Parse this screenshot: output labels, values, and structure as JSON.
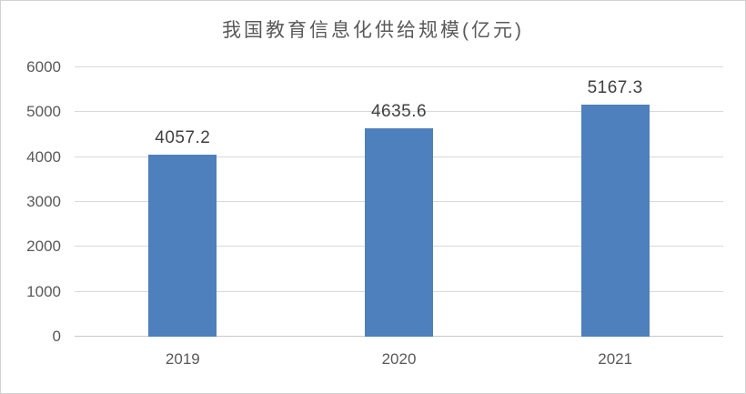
{
  "chart_data": {
    "type": "bar",
    "title": "我国教育信息化供给规模(亿元)",
    "categories": [
      "2019",
      "2020",
      "2021"
    ],
    "values": [
      4057.2,
      4635.6,
      5167.3
    ],
    "data_labels": [
      "4057.2",
      "4635.6",
      "5167.3"
    ],
    "ytick_labels": [
      "0",
      "1000",
      "2000",
      "3000",
      "4000",
      "5000",
      "6000"
    ],
    "yticks": [
      0,
      1000,
      2000,
      3000,
      4000,
      5000,
      6000
    ],
    "ylim": [
      0,
      6000
    ],
    "xlabel": "",
    "ylabel": "",
    "grid": "horizontal",
    "legend": "none",
    "bar_color": "#4d80bc",
    "gridline_color": "#d9d9d9",
    "axis_label_color": "#595959",
    "data_label_color": "#404040",
    "title_color": "#595959"
  }
}
